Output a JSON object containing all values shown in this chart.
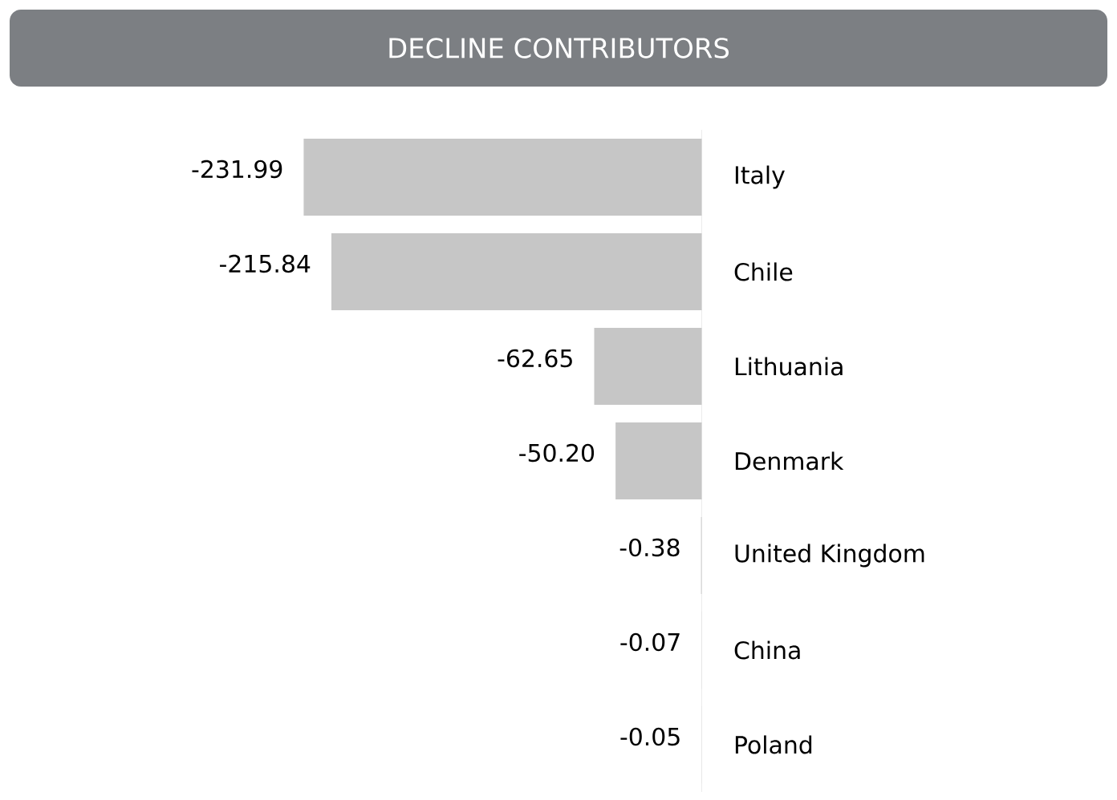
{
  "chart_data": {
    "type": "bar",
    "orientation": "horizontal",
    "title": "DECLINE CONTRIBUTORS",
    "categories": [
      "Italy",
      "Chile",
      "Lithuania",
      "Denmark",
      "United Kingdom",
      "China",
      "Poland"
    ],
    "values": [
      -231.99,
      -215.84,
      -62.65,
      -50.2,
      -0.38,
      -0.07,
      -0.05
    ],
    "value_labels": [
      "-231.99",
      "-215.84",
      "-62.65",
      "-50.20",
      "-0.38",
      "-0.07",
      "-0.05"
    ],
    "color": "#c6c6c6"
  }
}
